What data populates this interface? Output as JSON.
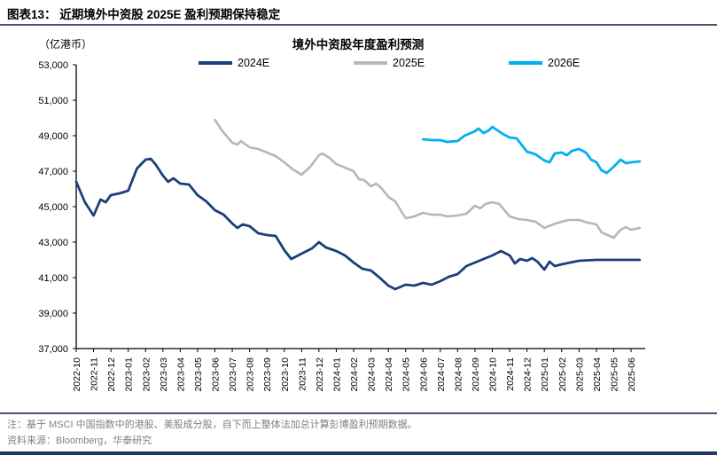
{
  "figure": {
    "title": "图表13：  近期境外中资股 2025E 盈利预期保持稳定",
    "note": "注：基于 MSCI 中国指数中的港股、美股成分股，自下而上整体法加总计算彭博盈利预期数据。",
    "source": "资料来源：Bloomberg，华泰研究"
  },
  "colors": {
    "rule": "#44546a",
    "bottom_bar": "#203864",
    "note_text": "#7f7f7f",
    "axis": "#000000",
    "series_2024e": "#1a3f7a",
    "series_2025e": "#b7b7b7",
    "series_2026e": "#00b0f0"
  },
  "chart_data": {
    "type": "line",
    "title": "境外中资股年度盈利预测",
    "unit_label": "（亿港币）",
    "xlabel": "",
    "ylabel": "（亿港币）",
    "ylim": [
      37000,
      53000
    ],
    "ystep": 2000,
    "grid": false,
    "legend_position": "top",
    "categories": [
      "2022-10",
      "2022-11",
      "2022-12",
      "2023-01",
      "2023-02",
      "2023-03",
      "2023-04",
      "2023-05",
      "2023-06",
      "2023-07",
      "2023-08",
      "2023-09",
      "2023-10",
      "2023-11",
      "2023-12",
      "2024-01",
      "2024-02",
      "2024-03",
      "2024-04",
      "2024-05",
      "2024-06",
      "2024-07",
      "2024-08",
      "2024-09",
      "2024-10",
      "2024-11",
      "2024-12",
      "2025-01",
      "2025-02",
      "2025-03",
      "2025-04",
      "2025-05",
      "2025-06"
    ],
    "series": [
      {
        "name": "2024E",
        "color": "#1a3f7a",
        "stroke_width": 2.8,
        "points": [
          [
            0,
            46400
          ],
          [
            0.5,
            45250
          ],
          [
            1,
            44500
          ],
          [
            1.4,
            45400
          ],
          [
            1.7,
            45250
          ],
          [
            2,
            45650
          ],
          [
            2.5,
            45750
          ],
          [
            3,
            45900
          ],
          [
            3.5,
            47150
          ],
          [
            4,
            47650
          ],
          [
            4.3,
            47700
          ],
          [
            4.6,
            47350
          ],
          [
            5,
            46750
          ],
          [
            5.3,
            46400
          ],
          [
            5.6,
            46600
          ],
          [
            6,
            46300
          ],
          [
            6.5,
            46250
          ],
          [
            7,
            45650
          ],
          [
            7.5,
            45300
          ],
          [
            8,
            44800
          ],
          [
            8.5,
            44550
          ],
          [
            9,
            44050
          ],
          [
            9.3,
            43800
          ],
          [
            9.6,
            44000
          ],
          [
            10,
            43900
          ],
          [
            10.5,
            43500
          ],
          [
            11,
            43400
          ],
          [
            11.5,
            43350
          ],
          [
            12,
            42550
          ],
          [
            12.4,
            42050
          ],
          [
            13,
            42350
          ],
          [
            13.6,
            42650
          ],
          [
            14,
            43000
          ],
          [
            14.4,
            42700
          ],
          [
            15,
            42500
          ],
          [
            15.5,
            42250
          ],
          [
            16,
            41850
          ],
          [
            16.5,
            41500
          ],
          [
            17,
            41400
          ],
          [
            17.5,
            41000
          ],
          [
            18,
            40550
          ],
          [
            18.4,
            40350
          ],
          [
            19,
            40600
          ],
          [
            19.5,
            40550
          ],
          [
            20,
            40700
          ],
          [
            20.5,
            40600
          ],
          [
            21,
            40800
          ],
          [
            21.5,
            41050
          ],
          [
            22,
            41200
          ],
          [
            22.5,
            41650
          ],
          [
            23,
            41850
          ],
          [
            23.5,
            42050
          ],
          [
            24,
            42250
          ],
          [
            24.5,
            42500
          ],
          [
            25,
            42250
          ],
          [
            25.3,
            41800
          ],
          [
            25.6,
            42050
          ],
          [
            26,
            41950
          ],
          [
            26.3,
            42100
          ],
          [
            26.6,
            41900
          ],
          [
            27,
            41450
          ],
          [
            27.3,
            41900
          ],
          [
            27.6,
            41650
          ],
          [
            28,
            41750
          ],
          [
            28.5,
            41850
          ],
          [
            29,
            41950
          ],
          [
            30,
            42000
          ],
          [
            31,
            42000
          ],
          [
            32,
            42000
          ],
          [
            32.5,
            42000
          ]
        ]
      },
      {
        "name": "2025E",
        "color": "#b7b7b7",
        "stroke_width": 2.6,
        "points": [
          [
            8,
            49900
          ],
          [
            8.4,
            49300
          ],
          [
            9,
            48600
          ],
          [
            9.3,
            48500
          ],
          [
            9.5,
            48700
          ],
          [
            10,
            48350
          ],
          [
            10.5,
            48250
          ],
          [
            11,
            48050
          ],
          [
            11.5,
            47850
          ],
          [
            12,
            47500
          ],
          [
            12.5,
            47100
          ],
          [
            13,
            46800
          ],
          [
            13.5,
            47250
          ],
          [
            14,
            47900
          ],
          [
            14.2,
            48000
          ],
          [
            14.6,
            47750
          ],
          [
            15,
            47400
          ],
          [
            15.5,
            47200
          ],
          [
            16,
            47000
          ],
          [
            16.3,
            46550
          ],
          [
            16.6,
            46500
          ],
          [
            17,
            46150
          ],
          [
            17.3,
            46300
          ],
          [
            17.6,
            46050
          ],
          [
            18,
            45550
          ],
          [
            18.4,
            45300
          ],
          [
            19,
            44350
          ],
          [
            19.5,
            44450
          ],
          [
            20,
            44650
          ],
          [
            20.5,
            44550
          ],
          [
            21,
            44550
          ],
          [
            21.4,
            44450
          ],
          [
            22,
            44500
          ],
          [
            22.5,
            44600
          ],
          [
            23,
            45050
          ],
          [
            23.3,
            44900
          ],
          [
            23.6,
            45150
          ],
          [
            24,
            45250
          ],
          [
            24.4,
            45150
          ],
          [
            25,
            44450
          ],
          [
            25.5,
            44300
          ],
          [
            26,
            44250
          ],
          [
            26.5,
            44150
          ],
          [
            27,
            43800
          ],
          [
            27.5,
            44000
          ],
          [
            28,
            44150
          ],
          [
            28.4,
            44250
          ],
          [
            29,
            44250
          ],
          [
            29.5,
            44100
          ],
          [
            30,
            44000
          ],
          [
            30.3,
            43550
          ],
          [
            31,
            43250
          ],
          [
            31.4,
            43700
          ],
          [
            31.7,
            43850
          ],
          [
            32,
            43700
          ],
          [
            32.5,
            43800
          ]
        ]
      },
      {
        "name": "2026E",
        "color": "#00b0f0",
        "stroke_width": 2.8,
        "points": [
          [
            20,
            48800
          ],
          [
            20.5,
            48750
          ],
          [
            21,
            48750
          ],
          [
            21.4,
            48650
          ],
          [
            22,
            48700
          ],
          [
            22.4,
            49000
          ],
          [
            23,
            49250
          ],
          [
            23.2,
            49400
          ],
          [
            23.5,
            49150
          ],
          [
            23.8,
            49300
          ],
          [
            24,
            49500
          ],
          [
            24.3,
            49300
          ],
          [
            24.6,
            49100
          ],
          [
            25,
            48900
          ],
          [
            25.4,
            48850
          ],
          [
            26,
            48100
          ],
          [
            26.5,
            47950
          ],
          [
            27,
            47600
          ],
          [
            27.3,
            47500
          ],
          [
            27.6,
            48000
          ],
          [
            28,
            48050
          ],
          [
            28.3,
            47900
          ],
          [
            28.6,
            48150
          ],
          [
            29,
            48250
          ],
          [
            29.4,
            48050
          ],
          [
            29.7,
            47650
          ],
          [
            30,
            47500
          ],
          [
            30.3,
            47050
          ],
          [
            30.6,
            46900
          ],
          [
            31,
            47250
          ],
          [
            31.4,
            47650
          ],
          [
            31.7,
            47450
          ],
          [
            32,
            47500
          ],
          [
            32.5,
            47550
          ]
        ]
      }
    ]
  }
}
